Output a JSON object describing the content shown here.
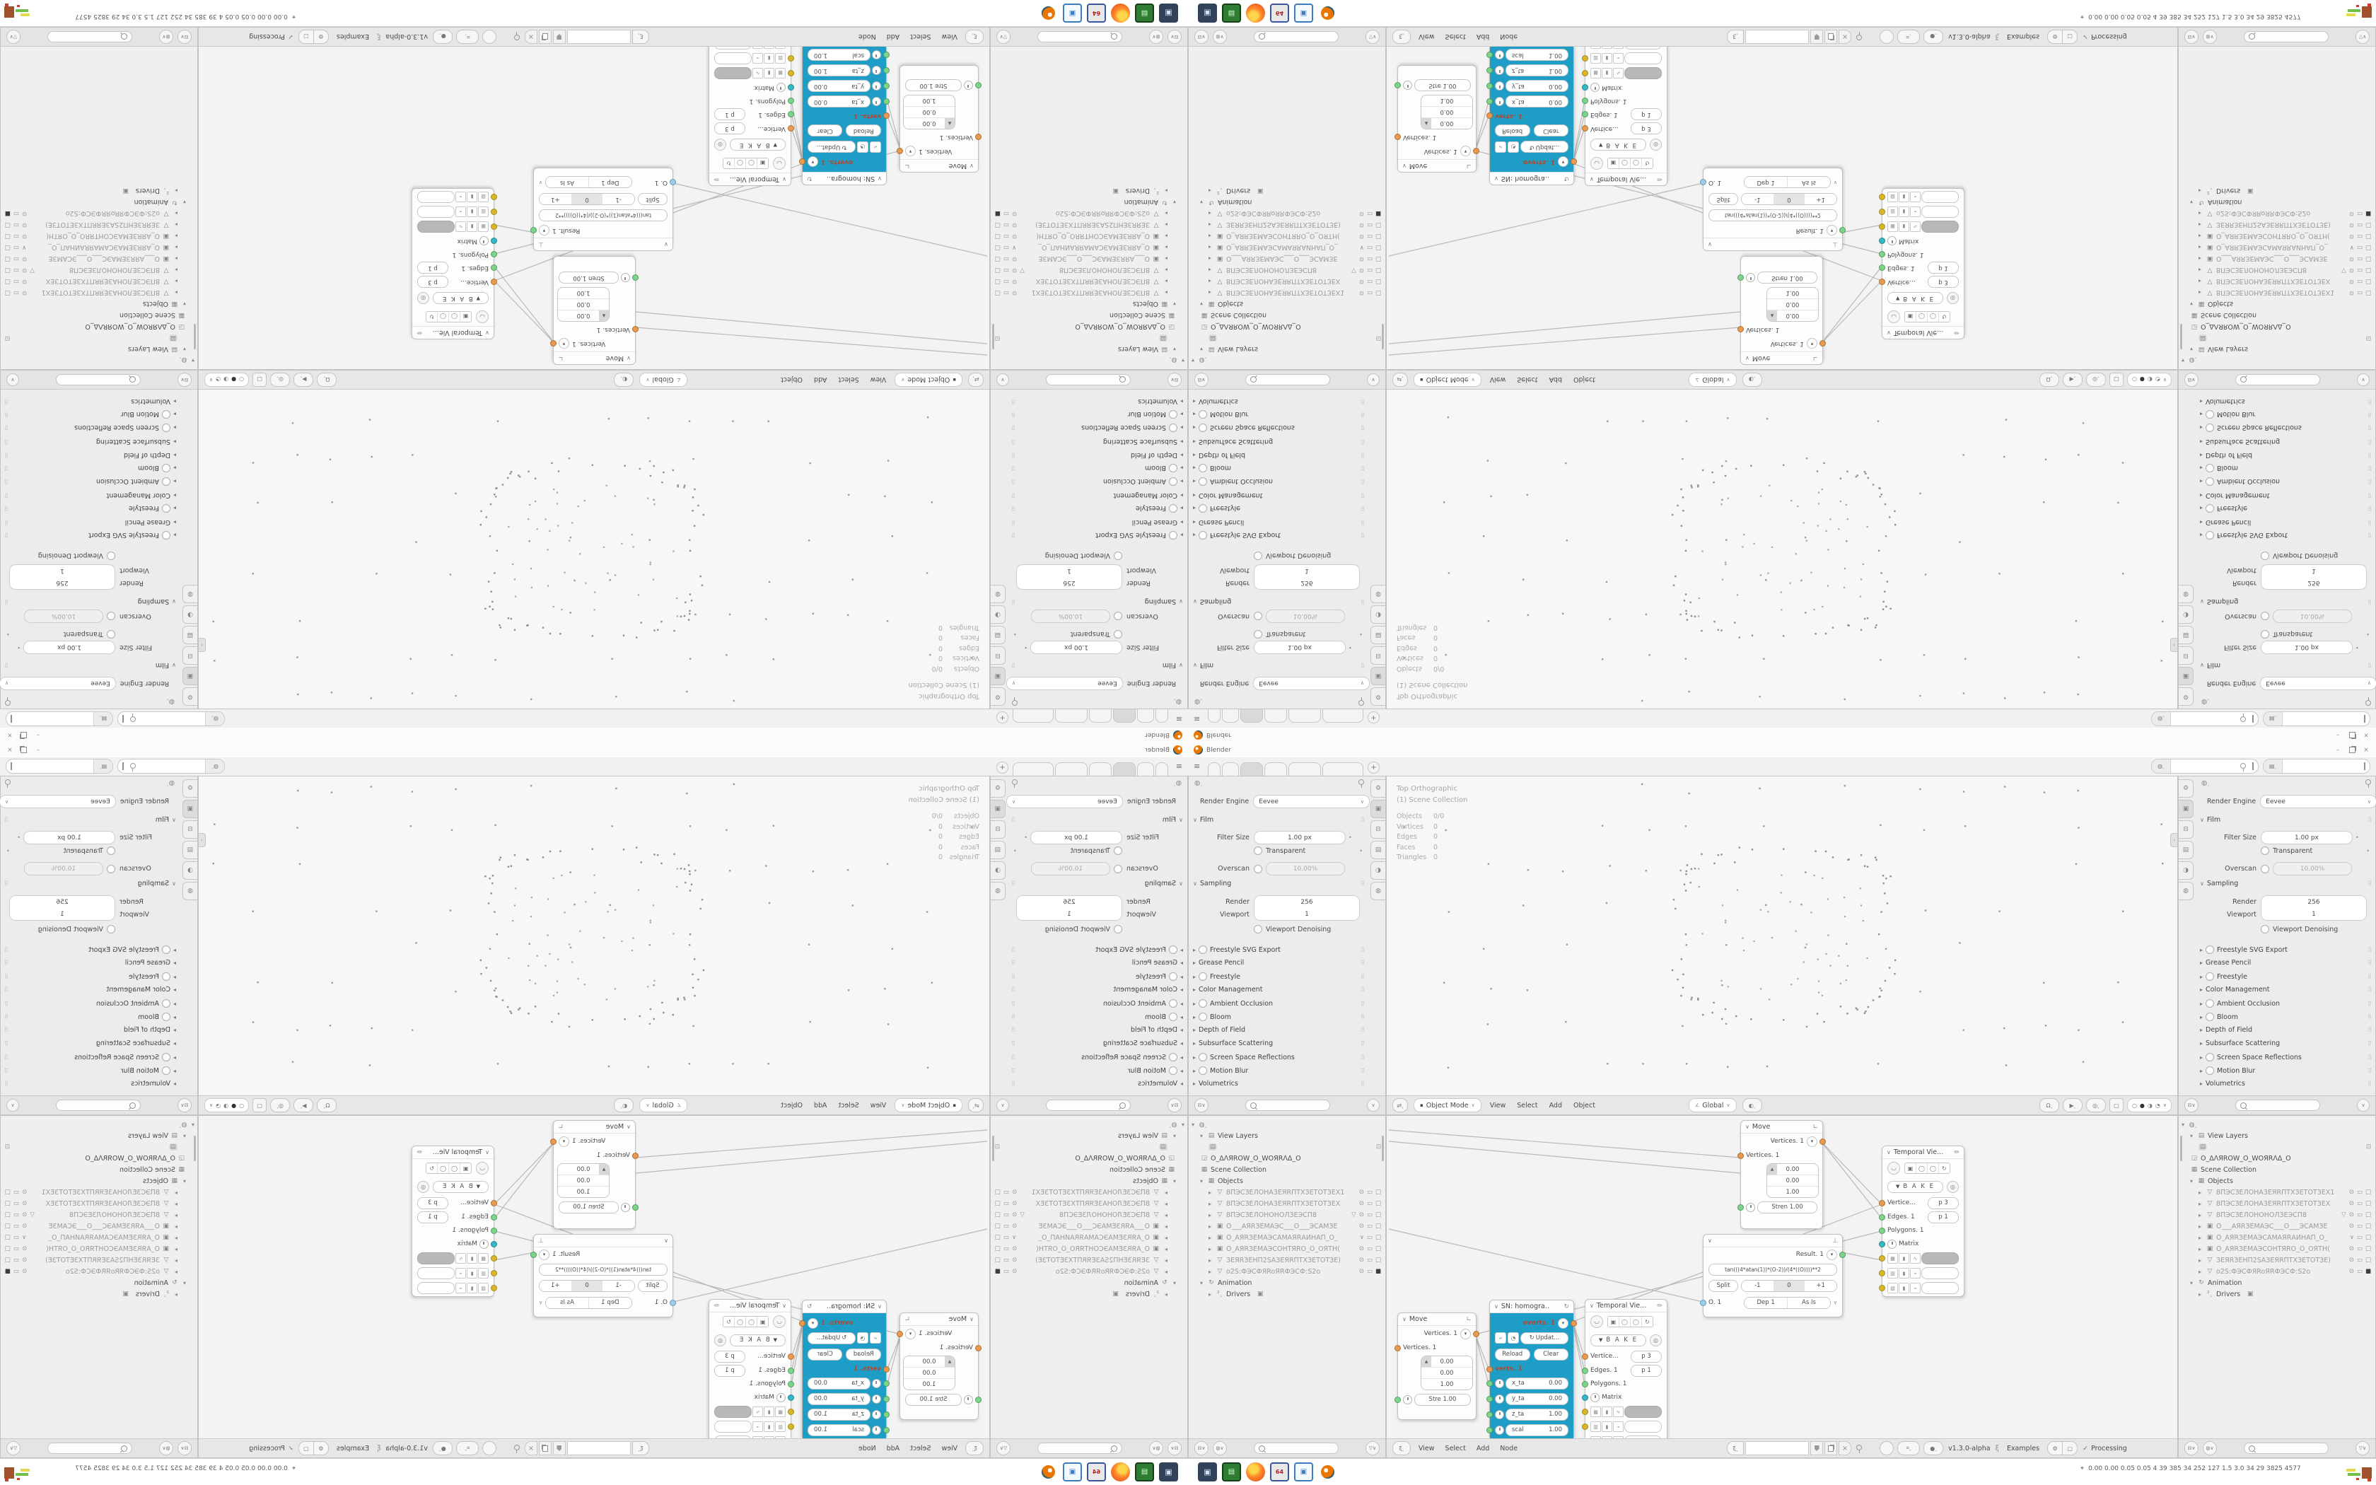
{
  "window": {
    "title": "Blender",
    "minimize_label": "–",
    "close_label": "×"
  },
  "properties": {
    "render_engine_label": "Render Engine",
    "render_engine_value": "Eevee",
    "film_section": "Film",
    "filter_size_label": "Filter Size",
    "filter_size_value": "1.00 px",
    "transparent_label": "Transparent",
    "overscan_label": "Overscan",
    "overscan_value": "10.00%",
    "sampling_section": "Sampling",
    "render_label": "Render",
    "render_value": "256",
    "viewport_label": "Viewport",
    "viewport_value": "1",
    "viewport_denoising_label": "Viewport Denoising",
    "sections": [
      {
        "label": "Freestyle SVG Export"
      },
      {
        "label": "Grease Pencil"
      },
      {
        "label": "Freestyle"
      },
      {
        "label": "Color Management"
      },
      {
        "label": "Ambient Occlusion"
      },
      {
        "label": "Bloom"
      },
      {
        "label": "Depth of Field"
      },
      {
        "label": "Subsurface Scattering"
      },
      {
        "label": "Screen Space Reflections"
      },
      {
        "label": "Motion Blur"
      },
      {
        "label": "Volumetrics"
      }
    ]
  },
  "viewport": {
    "overlay_line1": "Top Orthographic",
    "overlay_line2": "(1) Scene Collection",
    "stats": [
      {
        "label": "Objects",
        "value": "0/0"
      },
      {
        "label": "Vertices",
        "value": "0"
      },
      {
        "label": "Edges",
        "value": "0"
      },
      {
        "label": "Faces",
        "value": "0"
      },
      {
        "label": "Triangles",
        "value": "0"
      }
    ],
    "mode_value": "Object Mode",
    "menu_view": "View",
    "menu_select": "Select",
    "menu_add": "Add",
    "menu_object": "Object",
    "orientation_value": "Global"
  },
  "outliner": {
    "view_layers_label": "View Layers",
    "workspace_item": "O_ΔΛЯROW_O_WOЯRΛΔ_O",
    "scene_collection_label": "Scene Collection",
    "objects_label": "Objects",
    "objects": [
      {
        "name": "8ПЭСЗЕЛОНАЗЕЯRПТХЗЕТОТЗЕХ1"
      },
      {
        "name": "8ПЭСЗЕЛОНАЗЕЯRПТХЗЕТОТЗЕХ"
      },
      {
        "name": "8ПЭСЗЕЛОНОНОЛЗЕЭСП8"
      },
      {
        "name": "O___АЯRЗЕМАЭС___О___ЭСАМЗЕ"
      },
      {
        "name": "O_АЯRЗЕМАЭСАМАЯRАИНАП_О_"
      },
      {
        "name": "O_АЯRЗЕМАЭСОНТЯRО_О_ОЯТН("
      },
      {
        "name": "ЗЕЯRЗЕНП2SАЗЕЯRПТХЗЕТОТЗЕ)"
      },
      {
        "name": "o2S:ФЭСФЯRoЯRФЭСФ:S2o"
      }
    ],
    "animation_label": "Animation",
    "drivers_label": "Drivers"
  },
  "node_editor": {
    "menu_view": "View",
    "menu_select": "Select",
    "menu_add": "Add",
    "menu_node": "Node",
    "version": "v1.3.0-alpha",
    "examples_label": "Examples",
    "processing_label": "Processing",
    "nodes": {
      "move1": {
        "title": "Move",
        "output": "Vertices. 1",
        "input": "Vertices. 1",
        "x": "0.00",
        "y": "0.00",
        "z": "1.00",
        "m_label": "M",
        "strength": "Stre  1.00"
      },
      "move2": {
        "title": "Move",
        "output": "Vertices. 1",
        "input": "Vertices. 1",
        "x": "0.00",
        "y": "0.00",
        "z": "1.00",
        "m_label": "M",
        "strength": "Stren  1.00"
      },
      "sn": {
        "title": "SN: homogra..",
        "output": "overts. 1",
        "update_label": "Updat...",
        "reload_label": "Reload",
        "clear_label": "Clear",
        "input": "verts. 1",
        "rows": [
          {
            "label": "x_ta",
            "value": "0.00"
          },
          {
            "label": "y_ta",
            "value": "0.00"
          },
          {
            "label": "z_ta",
            "value": "1.00"
          },
          {
            "label": "scal",
            "value": "1.00"
          }
        ]
      },
      "temporal": {
        "title": "Temporal Vie...",
        "bake_label": "B A K E",
        "vertices_label": "Vertice...",
        "vertices_value": "p  3",
        "edges_label": "Edges. 1",
        "edges_value": "p  1",
        "polygons_label": "Polygons. 1",
        "matrix_label": "Matrix"
      },
      "formula": {
        "result": "Result. 1",
        "expression": "tan(((4*atan(1))*(O-2))/(4*((O))))**2",
        "split_label": "Split",
        "minus": "-1",
        "zero": "0",
        "plus": "+1",
        "o_label": "O. 1",
        "depth_value": "Dep  1",
        "mode_value": "As Is"
      }
    }
  },
  "taskbar": {
    "stats": "0.00 0.00 0.05 0.05   4    39   385   34   252  127   1.5   3.0   34    29   3825 4577"
  },
  "colors": {
    "sn_node_blue": "#1e9ec6",
    "socket_orange": "#e89a52",
    "socket_green": "#7ed48a",
    "socket_cyan": "#35b7c6",
    "socket_yellow": "#d7b62a",
    "socket_lightblue": "#9ecde9",
    "wire_gray": "#b9b9b9",
    "blender_orange": "#ea7600"
  }
}
